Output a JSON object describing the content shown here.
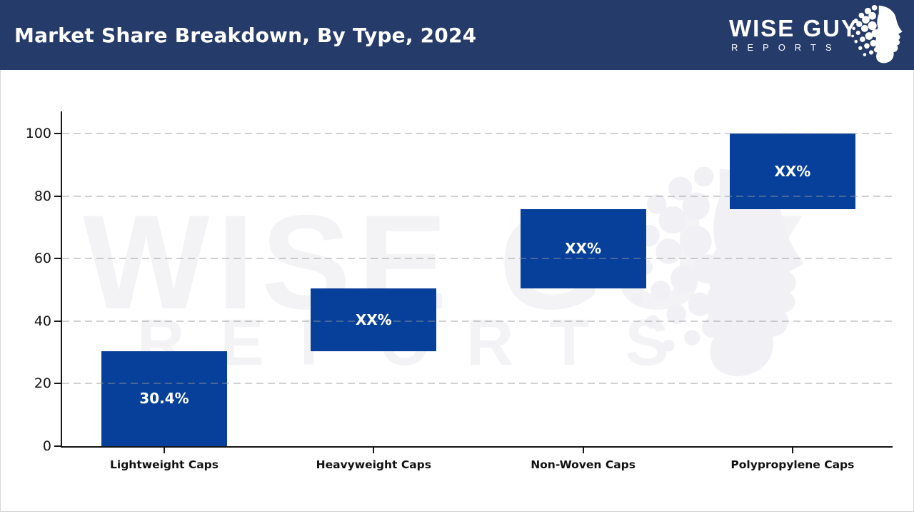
{
  "header": {
    "title": "Market Share Breakdown, By Type, 2024",
    "logo": {
      "line1": "WISE GUY",
      "line2": "REPORTS"
    }
  },
  "watermark": {
    "line1": "WISE GUY",
    "line2": "REPORTS"
  },
  "chart_data": {
    "type": "bar",
    "subtype": "waterfall",
    "title": "Market Share Breakdown, By Type, 2024",
    "categories": [
      "Lightweight Caps",
      "Heavyweight Caps",
      "Non-Woven Caps",
      "Polypropylene Caps"
    ],
    "segments": [
      {
        "category": "Lightweight Caps",
        "start": 0,
        "end": 30.4,
        "label": "30.4%"
      },
      {
        "category": "Heavyweight Caps",
        "start": 30.4,
        "end": 50.5,
        "label": "XX%"
      },
      {
        "category": "Non-Woven Caps",
        "start": 50.5,
        "end": 75.8,
        "label": "XX%"
      },
      {
        "category": "Polypropylene Caps",
        "start": 75.8,
        "end": 100,
        "label": "XX%"
      }
    ],
    "ylim": [
      0,
      100
    ],
    "yticks": [
      0,
      20,
      40,
      60,
      80,
      100
    ],
    "ytick_labels": [
      "0",
      "20",
      "40",
      "60",
      "80",
      "100"
    ],
    "xlabel": "",
    "ylabel": "",
    "grid": "dashed horizontal, drawn over bars",
    "legend": "none",
    "bar_color": "#07409A",
    "bar_label_color": "#FFFFFF",
    "axis_color": "#151515",
    "header_bg": "#253B6A",
    "watermark_color": "#F3F3F6"
  }
}
